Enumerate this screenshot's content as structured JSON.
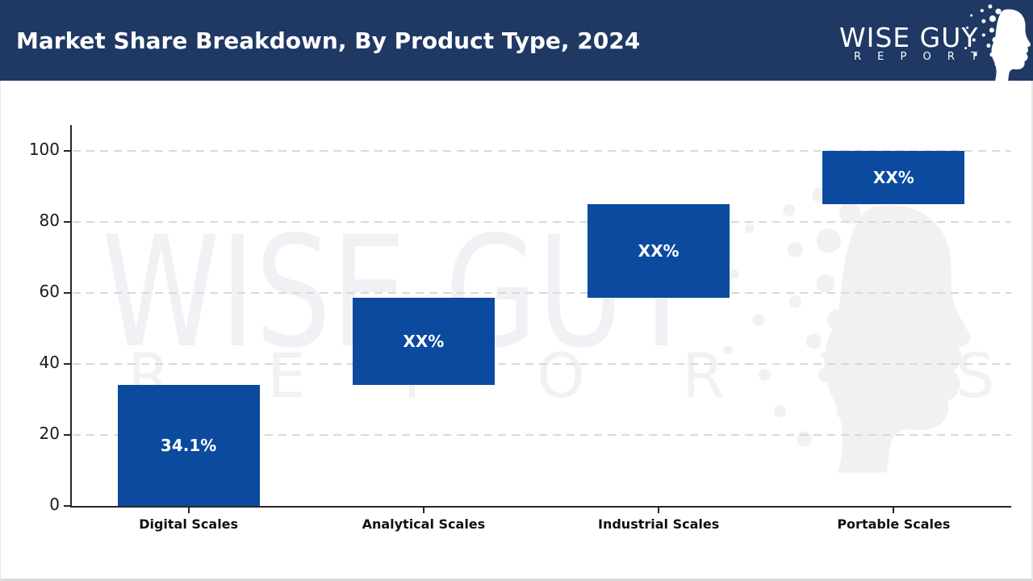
{
  "header": {
    "title": "Market Share Breakdown, By Product Type, 2024",
    "background_color": "#1f3864",
    "logo_line1": "WISE GUY",
    "logo_line2": "R E P O R T S"
  },
  "watermark": {
    "line1": "WISE GUY",
    "line2": "R E P O R T S"
  },
  "chart_data": {
    "type": "bar",
    "variant": "waterfall",
    "title": "Market Share Breakdown, By Product Type, 2024",
    "categories": [
      "Digital Scales",
      "Analytical Scales",
      "Industrial Scales",
      "Portable Scales"
    ],
    "segments": [
      {
        "category": "Digital Scales",
        "start": 0,
        "end": 34.1,
        "label": "34.1%"
      },
      {
        "category": "Analytical Scales",
        "start": 34.1,
        "end": 58.6,
        "label": "XX%"
      },
      {
        "category": "Industrial Scales",
        "start": 58.6,
        "end": 85,
        "label": "XX%"
      },
      {
        "category": "Portable Scales",
        "start": 85,
        "end": 100,
        "label": "XX%"
      }
    ],
    "ylim": [
      0,
      100
    ],
    "yticks": [
      0,
      20,
      40,
      60,
      80,
      100
    ],
    "xlabel": "",
    "ylabel": "",
    "grid": "horizontal-dashed",
    "legend": "none",
    "bar_color": "#0b4a9e",
    "bar_label_color": "#ffffff",
    "axis_color": "#262626",
    "grid_color": "#d9d9d9",
    "tick_label_color": "#1a1a1a"
  }
}
